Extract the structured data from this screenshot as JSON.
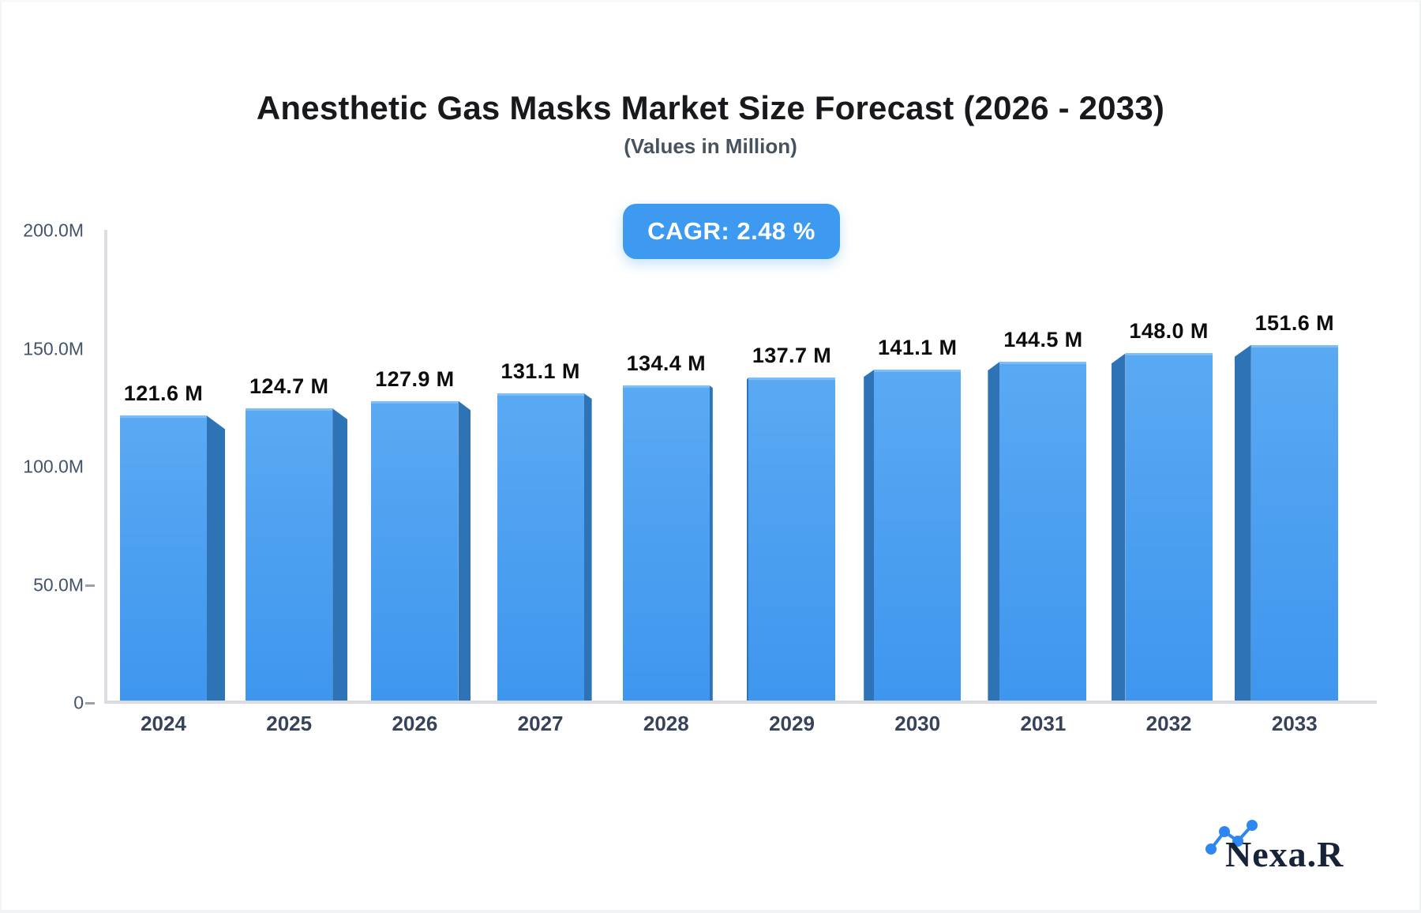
{
  "page": {
    "title": "Anesthetic Gas Masks Market Size Forecast (2026 - 2033)",
    "subtitle": "(Values in Million)"
  },
  "badge": {
    "label": "CAGR: 2.48 %"
  },
  "chart_data": {
    "type": "bar",
    "title": "Anesthetic Gas Masks Market Size Forecast (2026 - 2033)",
    "subtitle": "(Values in Million)",
    "cagr_label": "CAGR: 2.48 %",
    "categories": [
      "2024",
      "2025",
      "2026",
      "2027",
      "2028",
      "2029",
      "2030",
      "2031",
      "2032",
      "2033"
    ],
    "values": [
      121.6,
      124.7,
      127.9,
      131.1,
      134.4,
      137.7,
      141.1,
      144.5,
      148.0,
      151.6
    ],
    "bar_labels": [
      "121.6 M",
      "124.7 M",
      "127.9 M",
      "131.1 M",
      "134.4 M",
      "137.7 M",
      "141.1 M",
      "144.5 M",
      "148.0 M",
      "151.6 M"
    ],
    "xlabel": "",
    "ylabel": "",
    "ylim": [
      0,
      200
    ],
    "grid": false,
    "legend": null,
    "y_ticks": [
      {
        "label": "200.0M",
        "value": 200
      },
      {
        "label": "150.0M",
        "value": 150
      },
      {
        "label": "100.0M",
        "value": 100
      },
      {
        "label": "50.0M",
        "value": 50
      },
      {
        "label": "0",
        "value": 0
      }
    ],
    "dash_tick_values": [
      50,
      0
    ],
    "colors": {
      "accent": "#3d9af0",
      "bar_face_top": "#5aa9f3",
      "bar_face_bottom": "#3e96ee",
      "bar_face_highlight": "#7ebdf6",
      "bar_side": "#2e73b5",
      "axis_line": "#dbdee3",
      "value_label_text": "#0d0d0d",
      "axis_label_text": "#43536b",
      "title_text": "#17191c",
      "badge_text": "#ffffff"
    }
  },
  "logo": {
    "text": "Nexa.R"
  }
}
